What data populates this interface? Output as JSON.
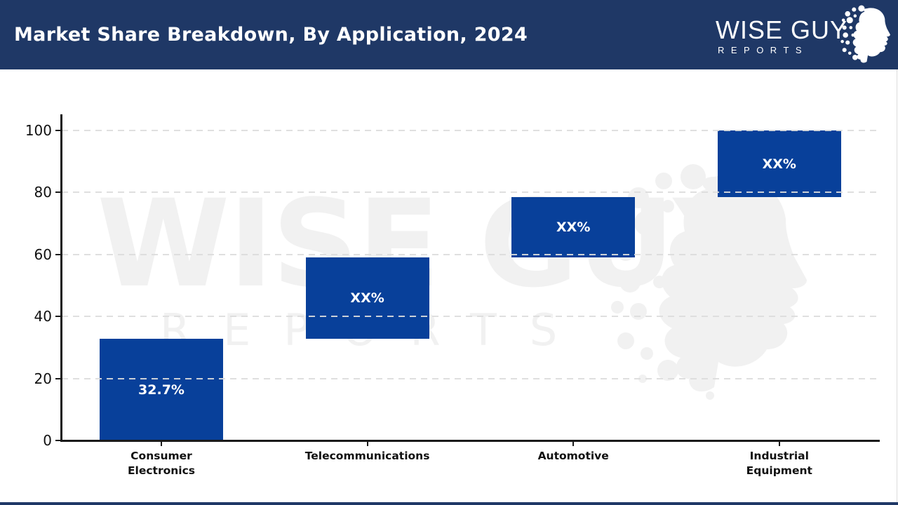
{
  "header": {
    "title": "Market Share Breakdown, By Application, 2024",
    "logo": {
      "wordmark": "WISE GUY",
      "tagline": "REPORTS"
    }
  },
  "watermark": {
    "line1": "WISE GUY",
    "line2": "REPORTS"
  },
  "chart_data": {
    "type": "bar",
    "subtype": "waterfall",
    "title": "Market Share Breakdown, By Application, 2024",
    "categories": [
      "Consumer Electronics",
      "Telecommunications",
      "Automotive",
      "Industrial Equipment"
    ],
    "category_lines": [
      [
        "Consumer",
        "Electronics"
      ],
      [
        "Telecommunications"
      ],
      [
        "Automotive"
      ],
      [
        "Industrial",
        "Equipment"
      ]
    ],
    "segments": [
      {
        "category": "Consumer Electronics",
        "start": 0,
        "end": 32.7,
        "label": "32.7%"
      },
      {
        "category": "Telecommunications",
        "start": 32.7,
        "end": 59.0,
        "label": "XX%"
      },
      {
        "category": "Automotive",
        "start": 59.0,
        "end": 78.4,
        "label": "XX%"
      },
      {
        "category": "Industrial Equipment",
        "start": 78.4,
        "end": 100,
        "label": "XX%"
      }
    ],
    "ylim": [
      0,
      100
    ],
    "yticks": [
      0,
      20,
      40,
      60,
      80,
      100
    ],
    "grid": true,
    "legend": false,
    "xlabel": "",
    "ylabel": "",
    "colors": {
      "bar": "#08409a",
      "bar_label": "#ffffff",
      "axis": "#1a1a1a",
      "grid": "#dcdcdc",
      "tick_label": "#111111",
      "header_bg": "#1f3866",
      "watermark": "#f1f1f1"
    }
  }
}
